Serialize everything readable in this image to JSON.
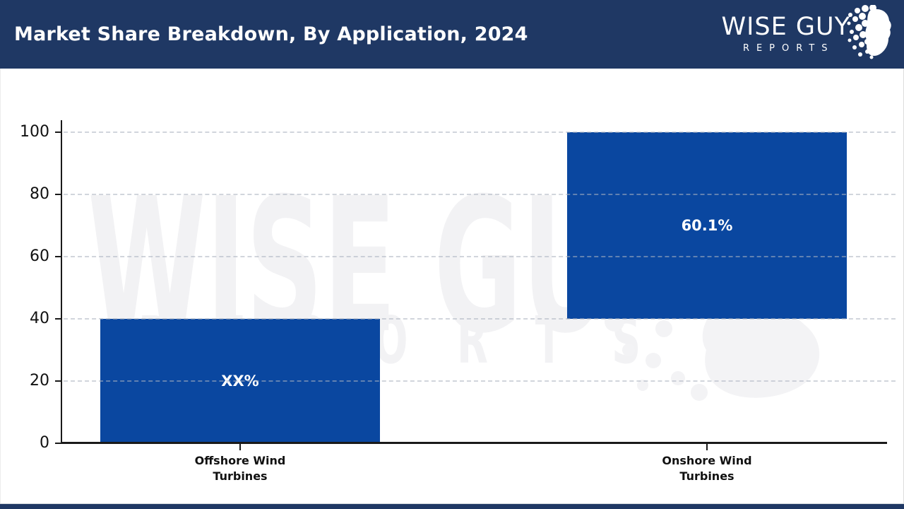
{
  "header": {
    "title": "Market Share Breakdown, By Application, 2024",
    "logo": {
      "name": "WISE GUY",
      "sub": "REPORTS"
    }
  },
  "watermark": {
    "big": "WISE GU",
    "small": "REPORTS"
  },
  "colors": {
    "header_bg": "#1F3864",
    "bar": "#0A47A0",
    "grid": "#aeb5c0",
    "axis": "#1a1a1a",
    "watermark": "#f2f2f4",
    "bar_label_text": "#ffffff"
  },
  "chart_data": {
    "type": "bar",
    "title": "Market Share Breakdown, By Application, 2024",
    "xlabel": "",
    "ylabel": "",
    "ylim": [
      0,
      100
    ],
    "yticks": [
      0,
      20,
      40,
      60,
      80,
      100
    ],
    "grid": "horizontal-dashed",
    "legend": "none",
    "categories": [
      "Offshore Wind Turbines",
      "Onshore Wind Turbines"
    ],
    "bars": [
      {
        "category": "Offshore Wind Turbines",
        "from": 0,
        "to": 40,
        "label": "XX%"
      },
      {
        "category": "Onshore Wind Turbines",
        "from": 40,
        "to": 100,
        "label": "60.1%"
      }
    ]
  }
}
